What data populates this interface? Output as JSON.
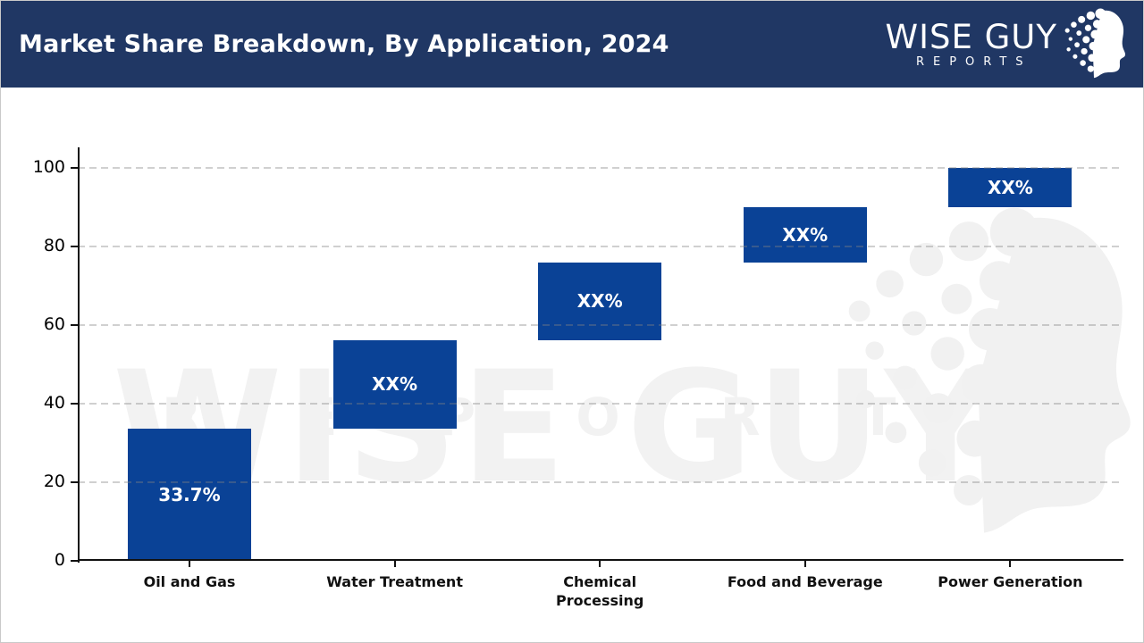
{
  "header": {
    "title": "Market Share Breakdown, By Application, 2024",
    "logo": {
      "line1": "WISE GUY",
      "line2": "REPORTS"
    }
  },
  "watermark": {
    "line1": "WISE GUY",
    "line2": "R E P O R T S"
  },
  "chart_data": {
    "type": "bar",
    "subtype": "waterfall",
    "title": "Market Share Breakdown, By Application, 2024",
    "categories": [
      "Oil and Gas",
      "Water Treatment",
      "Chemical\nProcessing",
      "Food and Beverage",
      "Power Generation"
    ],
    "segments": [
      {
        "category": "Oil and Gas",
        "start": 0,
        "end": 33.7,
        "label": "33.7%"
      },
      {
        "category": "Water Treatment",
        "start": 33.7,
        "end": 56.2,
        "label": "XX%"
      },
      {
        "category": "Chemical\nProcessing",
        "start": 56.2,
        "end": 76.0,
        "label": "XX%"
      },
      {
        "category": "Food and Beverage",
        "start": 76.0,
        "end": 90.0,
        "label": "XX%"
      },
      {
        "category": "Power Generation",
        "start": 90.0,
        "end": 100.0,
        "label": "XX%"
      }
    ],
    "yticks": [
      0,
      20,
      40,
      60,
      80,
      100
    ],
    "ylim": [
      0,
      105
    ],
    "xlabel": "",
    "ylabel": "",
    "legend": "none",
    "grid": "horizontal-dashed",
    "bar_color": "#0a4296"
  },
  "colors": {
    "header_bg": "#203764",
    "bar": "#0a4296",
    "axis": "#111111",
    "watermark": "#f2f2f2"
  }
}
